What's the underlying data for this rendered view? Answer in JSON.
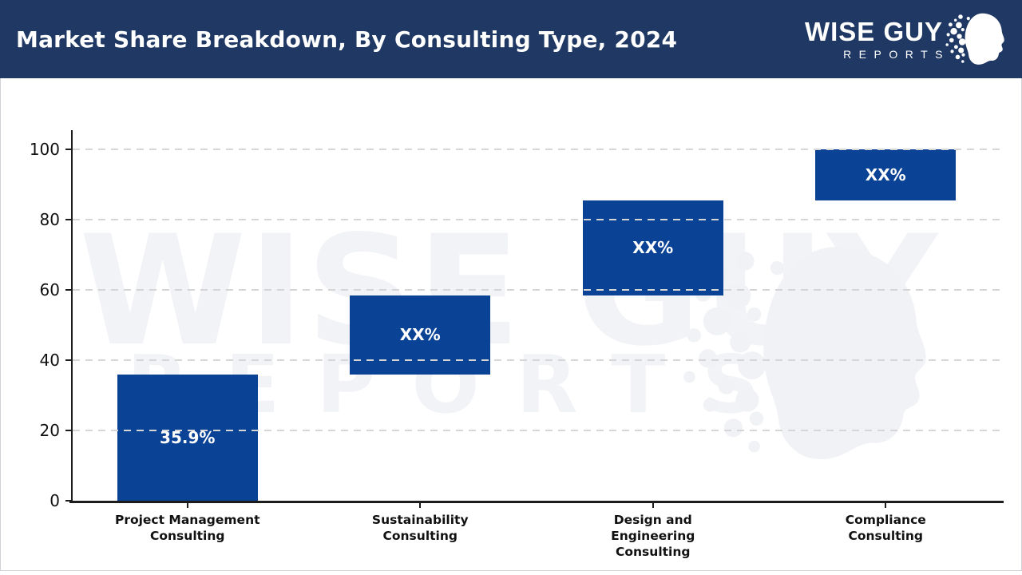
{
  "header": {
    "title": "Market Share Breakdown, By Consulting Type, 2024"
  },
  "brand": {
    "name": "WISE GUY",
    "sub": "REPORTS"
  },
  "watermark": {
    "name": "WISE GUY",
    "sub": "REPORTS"
  },
  "colors": {
    "header_bg": "#1f3864",
    "bar": "#0a4296",
    "bar_label": "#ffffff",
    "axis": "#1c1c1c",
    "grid": "#d6d6d6",
    "watermark": "#f2f3f6",
    "panel_border": "#cfd3d8"
  },
  "chart_data": {
    "type": "bar",
    "subtype": "waterfall",
    "title": "Market Share Breakdown, By Consulting Type, 2024",
    "xlabel": "",
    "ylabel": "",
    "ylim": [
      0,
      105
    ],
    "yticks": [
      0,
      20,
      40,
      60,
      80,
      100
    ],
    "grid": "horizontal-dashed-over-bars",
    "legend": false,
    "categories": [
      [
        "Project Management",
        "Consulting"
      ],
      [
        "Sustainability",
        "Consulting"
      ],
      [
        "Design and",
        "Engineering",
        "Consulting"
      ],
      [
        "Compliance",
        "Consulting"
      ]
    ],
    "segments": [
      {
        "name": "Project Management Consulting",
        "start": 0,
        "end": 35.9,
        "label": "35.9%"
      },
      {
        "name": "Sustainability Consulting",
        "start": 35.9,
        "end": 58.5,
        "label": "XX%"
      },
      {
        "name": "Design and Engineering Consulting",
        "start": 58.5,
        "end": 85.5,
        "label": "XX%"
      },
      {
        "name": "Compliance Consulting",
        "start": 85.5,
        "end": 100,
        "label": "XX%"
      }
    ]
  }
}
